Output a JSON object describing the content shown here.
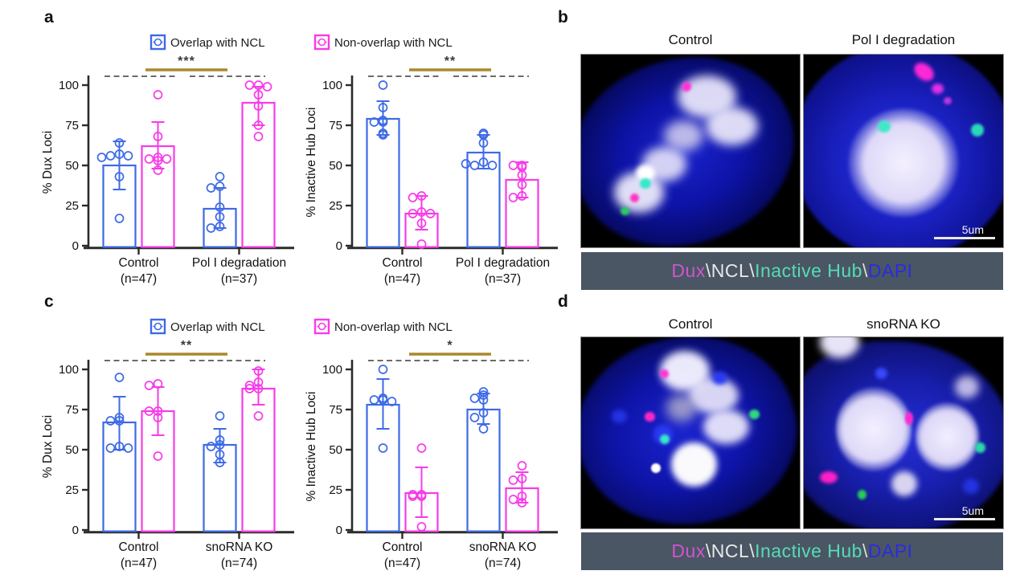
{
  "figure": {
    "panels": {
      "a": "a",
      "b": "b",
      "c": "c",
      "d": "d"
    }
  },
  "colors": {
    "overlap": "#3D6AE6",
    "non_overlap": "#F73BE8",
    "sig_line": "#A9892C",
    "star": "#3a3a3a",
    "dashed": "#6b6b6b",
    "axis": "#2b2b2b",
    "banner_bg": "#4A5663"
  },
  "legend": {
    "overlap_label": "Overlap with NCL",
    "non_overlap_label": "Non-overlap with NCL"
  },
  "chart_data": [
    {
      "id": "a-dux-loci",
      "type": "bar",
      "panel": "a",
      "title": "",
      "xlabel": "",
      "ylabel": "% Dux Loci",
      "ylim": [
        0,
        105
      ],
      "yticks": [
        0,
        25,
        50,
        75,
        100
      ],
      "grid": false,
      "legend_position": "top",
      "legend_series": 0,
      "legend_x": 140,
      "significance": "***",
      "dashed_guides": true,
      "categories": [
        "Control\n(n=47)",
        "Pol I degradation\n(n=37)"
      ],
      "series": [
        {
          "name": "Overlap with NCL",
          "color": "#3D6AE6",
          "values": [
            50,
            23
          ],
          "err_low": [
            35,
            11
          ],
          "err_high": [
            65,
            36
          ],
          "points": [
            [
              64,
              57,
              56,
              56,
              55,
              43,
              17
            ],
            [
              43,
              37,
              36,
              24,
              18,
              12,
              11
            ]
          ]
        },
        {
          "name": "Non-overlap with NCL",
          "color": "#F73BE8",
          "values": [
            62,
            89
          ],
          "err_low": [
            48,
            75
          ],
          "err_high": [
            77,
            99
          ],
          "points": [
            [
              94,
              68,
              55,
              54,
              54,
              53,
              47
            ],
            [
              100,
              100,
              99,
              94,
              87,
              75,
              68
            ]
          ]
        }
      ]
    },
    {
      "id": "a-inactive-hub-loci",
      "type": "bar",
      "panel": "a",
      "title": "",
      "xlabel": "",
      "ylabel": "% Inactive Hub Loci",
      "ylim": [
        0,
        105
      ],
      "yticks": [
        0,
        25,
        50,
        75,
        100
      ],
      "grid": false,
      "legend_position": "top",
      "legend_series": 1,
      "legend_x": 16,
      "significance": "**",
      "dashed_guides": true,
      "categories": [
        "Control\n(n=47)",
        "Pol I degradation\n(n=37)"
      ],
      "series": [
        {
          "name": "Overlap with NCL",
          "color": "#3D6AE6",
          "values": [
            79,
            58
          ],
          "err_low": [
            69,
            48
          ],
          "err_high": [
            90,
            69
          ],
          "points": [
            [
              100,
              86,
              78,
              77,
              77,
              70,
              69
            ],
            [
              70,
              69,
              64,
              52,
              50,
              50,
              51
            ]
          ]
        },
        {
          "name": "Non-overlap with NCL",
          "color": "#F73BE8",
          "values": [
            20,
            41
          ],
          "err_low": [
            10,
            30
          ],
          "err_high": [
            31,
            52
          ],
          "points": [
            [
              31,
              30,
              21,
              20,
              20,
              14,
              1
            ],
            [
              50,
              50,
              49,
              44,
              38,
              31,
              30
            ]
          ]
        }
      ]
    },
    {
      "id": "c-dux-loci",
      "type": "bar",
      "panel": "c",
      "title": "",
      "xlabel": "",
      "ylabel": "% Dux Loci",
      "ylim": [
        0,
        105
      ],
      "yticks": [
        0,
        25,
        50,
        75,
        100
      ],
      "grid": false,
      "legend_position": "top",
      "legend_series": 0,
      "legend_x": 140,
      "significance": "**",
      "dashed_guides": true,
      "categories": [
        "Control\n(n=47)",
        "snoRNA KO\n(n=74)"
      ],
      "series": [
        {
          "name": "Overlap with NCL",
          "color": "#3D6AE6",
          "values": [
            67,
            53
          ],
          "err_low": [
            50,
            42
          ],
          "err_high": [
            83,
            63
          ],
          "points": [
            [
              95,
              70,
              68,
              68,
              52,
              51,
              51
            ],
            [
              71,
              56,
              53,
              52,
              47,
              42
            ]
          ]
        },
        {
          "name": "Non-overlap with NCL",
          "color": "#F73BE8",
          "values": [
            74,
            88
          ],
          "err_low": [
            59,
            78
          ],
          "err_high": [
            89,
            100
          ],
          "points": [
            [
              91,
              90,
              74,
              74,
              70,
              46
            ],
            [
              99,
              92,
              90,
              88,
              88,
              71
            ]
          ]
        }
      ]
    },
    {
      "id": "c-inactive-hub-loci",
      "type": "bar",
      "panel": "c",
      "title": "",
      "xlabel": "",
      "ylabel": "% Inactive Hub Loci",
      "ylim": [
        0,
        105
      ],
      "yticks": [
        0,
        25,
        50,
        75,
        100
      ],
      "grid": false,
      "legend_position": "top",
      "legend_series": 1,
      "legend_x": 16,
      "significance": "*",
      "dashed_guides": true,
      "categories": [
        "Control\n(n=47)",
        "snoRNA KO\n(n=74)"
      ],
      "series": [
        {
          "name": "Overlap with NCL",
          "color": "#3D6AE6",
          "values": [
            78,
            75
          ],
          "err_low": [
            63,
            66
          ],
          "err_high": [
            94,
            85
          ],
          "points": [
            [
              100,
              82,
              81,
              81,
              80,
              51
            ],
            [
              86,
              84,
              82,
              81,
              73,
              70,
              63
            ]
          ]
        },
        {
          "name": "Non-overlap with NCL",
          "color": "#F73BE8",
          "values": [
            23,
            26
          ],
          "err_low": [
            8,
            17
          ],
          "err_high": [
            39,
            36
          ],
          "points": [
            [
              51,
              22,
              22,
              21,
              21,
              2
            ],
            [
              40,
              32,
              31,
              21,
              19,
              17
            ]
          ]
        }
      ]
    }
  ],
  "micrographs": {
    "b": {
      "titles": [
        "Control",
        "Pol I degradation"
      ],
      "scalebar": "5um",
      "caption": [
        {
          "text": "Dux",
          "color": "#CE55D2"
        },
        {
          "text": "\\",
          "color": "#E8E8E8"
        },
        {
          "text": "NCL",
          "color": "#E8E8E8"
        },
        {
          "text": "\\",
          "color": "#E8E8E8"
        },
        {
          "text": "Inactive Hub",
          "color": "#57DBB9"
        },
        {
          "text": "\\",
          "color": "#DDDDDD"
        },
        {
          "text": "DAPI",
          "color": "#2B2BE0"
        }
      ]
    },
    "d": {
      "titles": [
        "Control",
        "snoRNA KO"
      ],
      "scalebar": "5um",
      "caption": [
        {
          "text": "Dux",
          "color": "#CE55D2"
        },
        {
          "text": "\\",
          "color": "#E8E8E8"
        },
        {
          "text": "NCL",
          "color": "#E8E8E8"
        },
        {
          "text": "\\",
          "color": "#E8E8E8"
        },
        {
          "text": "Inactive Hub",
          "color": "#57DBB9"
        },
        {
          "text": "\\",
          "color": "#DDDDDD"
        },
        {
          "text": "DAPI",
          "color": "#2B2BE0"
        }
      ]
    }
  }
}
